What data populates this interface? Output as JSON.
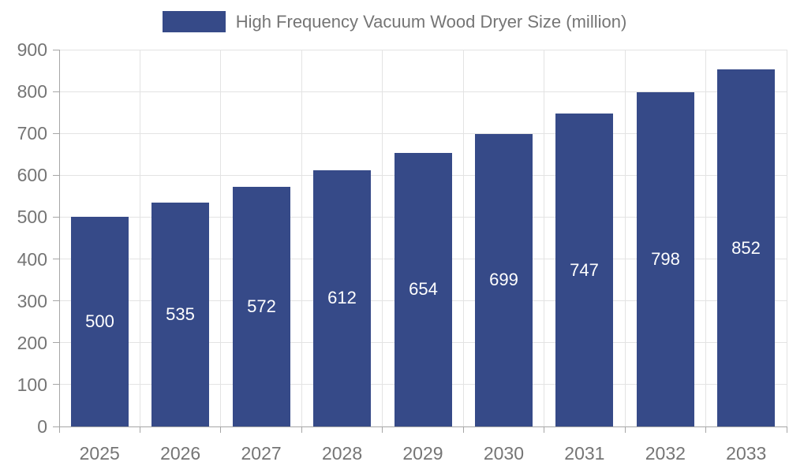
{
  "legend": {
    "label": "High Frequency Vacuum Wood Dryer Size (million)"
  },
  "chart_data": {
    "type": "bar",
    "title": "High Frequency Vacuum Wood Dryer Size (million)",
    "categories": [
      "2025",
      "2026",
      "2027",
      "2028",
      "2029",
      "2030",
      "2031",
      "2032",
      "2033"
    ],
    "values": [
      500,
      535,
      572,
      612,
      654,
      699,
      747,
      798,
      852
    ],
    "xlabel": "",
    "ylabel": "",
    "ylim": [
      0,
      900
    ],
    "ytick_step": 100,
    "grid": true,
    "legend_position": "top",
    "colors": {
      "bar": "#364a88",
      "value_label": "#ffffff",
      "axis_text": "#757575",
      "grid_line": "#e3e3e3",
      "axis_line": "#a6a6a6"
    }
  }
}
